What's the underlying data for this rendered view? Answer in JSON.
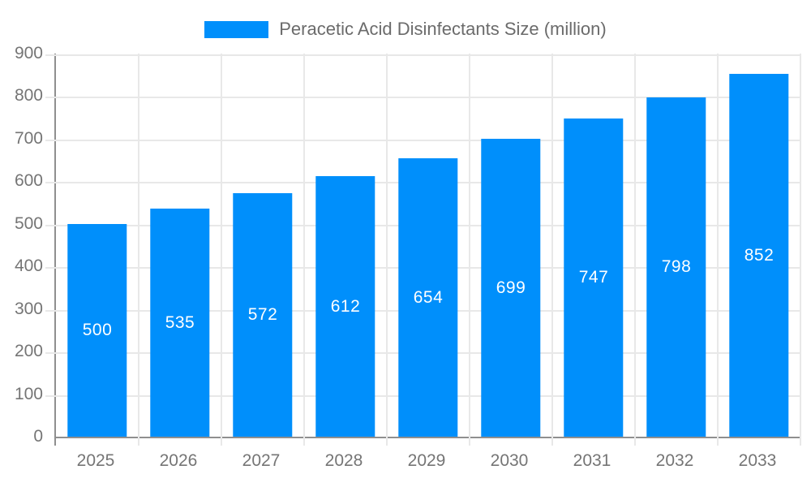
{
  "page": {
    "background": "#ffffff"
  },
  "legend": {
    "label": "Peracetic Acid Disinfectants Size (million)",
    "swatch_color": "#008FFB",
    "position": "top-center"
  },
  "chart_data": {
    "type": "bar",
    "title": "Peracetic Acid Disinfectants Size (million)",
    "categories": [
      "2025",
      "2026",
      "2027",
      "2028",
      "2029",
      "2030",
      "2031",
      "2032",
      "2033"
    ],
    "values": [
      500,
      535,
      572,
      612,
      654,
      699,
      747,
      798,
      852
    ],
    "value_labels": [
      "500",
      "535",
      "572",
      "612",
      "654",
      "699",
      "747",
      "798",
      "852"
    ],
    "xlabel": "",
    "ylabel": "",
    "ylim": [
      0,
      900
    ],
    "ytick_step": 100,
    "ytick_labels": [
      "0",
      "100",
      "200",
      "300",
      "400",
      "500",
      "600",
      "700",
      "800",
      "900"
    ],
    "grid": "both",
    "legend_position": "top",
    "bar_color": "#008FFB",
    "bar_label_color": "#ffffff",
    "axis_line_color": "#8f8f8f",
    "gridline_color": "#e8e8e8",
    "tick_text_color": "#757575",
    "bar_width_fraction": 0.72
  }
}
